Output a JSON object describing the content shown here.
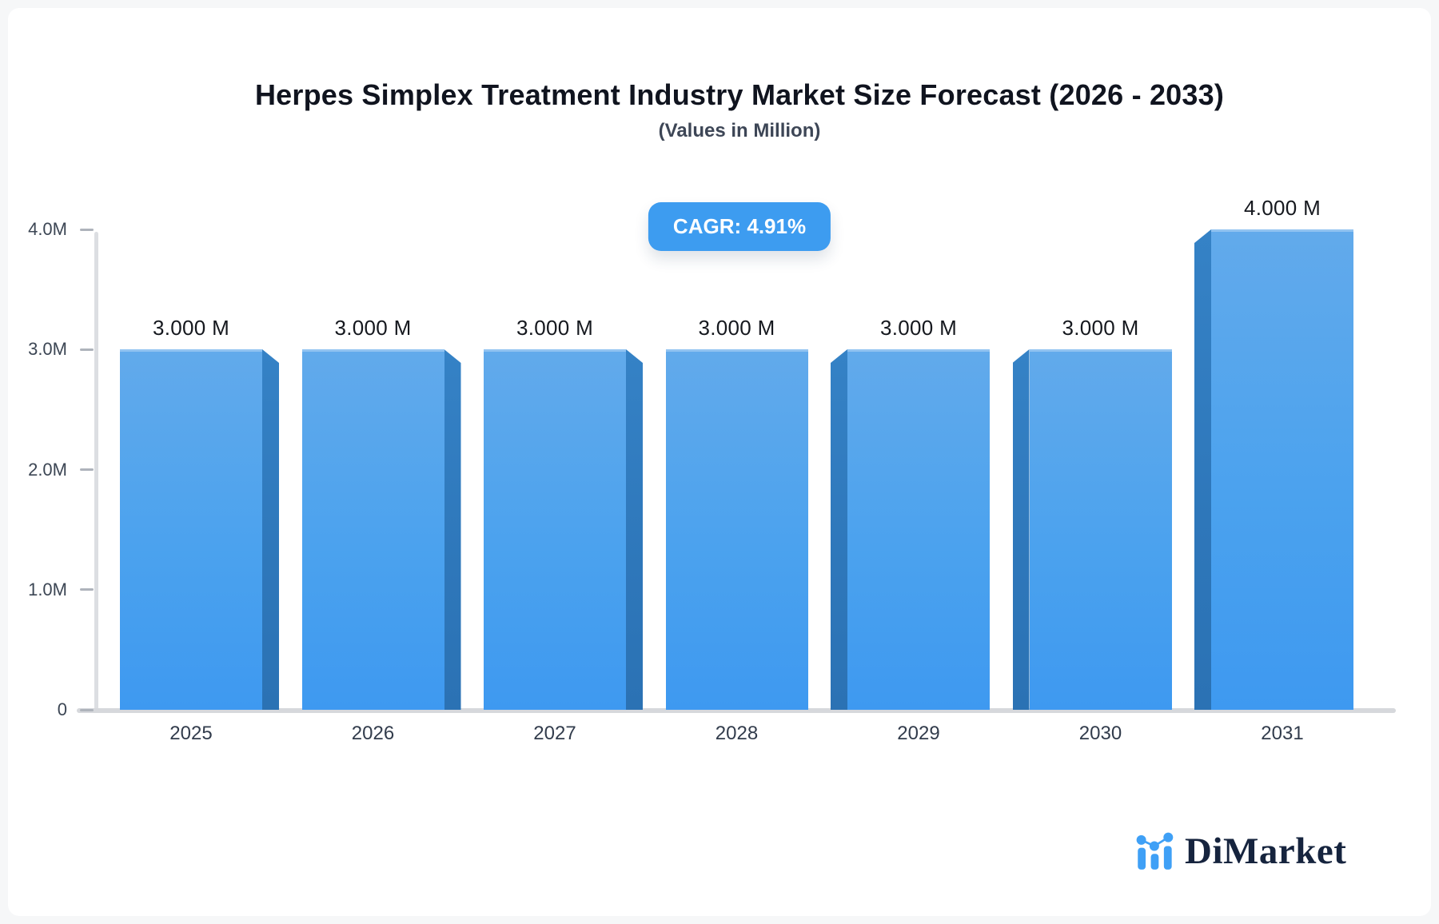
{
  "header": {
    "title": "Herpes Simplex Treatment Industry Market Size Forecast (2026 - 2033)",
    "subtitle": "(Values in Million)"
  },
  "cagr_badge": {
    "label": "CAGR: 4.91%",
    "color": "#3d9cf0"
  },
  "branding": {
    "name": "DiMarket",
    "text_color": "#16243e",
    "icon_color": "#3fa0f6"
  },
  "chart_data": {
    "type": "bar",
    "title": "Herpes Simplex Treatment Industry Market Size Forecast (2026 - 2033)",
    "subtitle": "(Values in Million)",
    "unit": "Million",
    "annotation": "CAGR: 4.91%",
    "categories": [
      "2025",
      "2026",
      "2027",
      "2028",
      "2029",
      "2030",
      "2031"
    ],
    "values": [
      3.0,
      3.0,
      3.0,
      3.0,
      3.0,
      3.0,
      4.0
    ],
    "value_labels": [
      "3.000 M",
      "3.000 M",
      "3.000 M",
      "3.000 M",
      "3.000 M",
      "3.000 M",
      "4.000 M"
    ],
    "xlabel": "",
    "ylabel": "",
    "ylim": [
      0,
      4
    ],
    "grid": false,
    "legend": false,
    "y_axis_ticks": [
      {
        "label": "4.0M",
        "value": 4
      },
      {
        "label": "3.0M",
        "value": 3
      },
      {
        "label": "2.0M",
        "value": 2
      },
      {
        "label": "1.0M",
        "value": 1
      },
      {
        "label": "0",
        "value": 0
      }
    ],
    "bar_color_top": "#62aaeb",
    "bar_color_bottom": "#3e99f0",
    "bar_side_color": "#2e77ba",
    "style": "3d-perspective-center"
  }
}
